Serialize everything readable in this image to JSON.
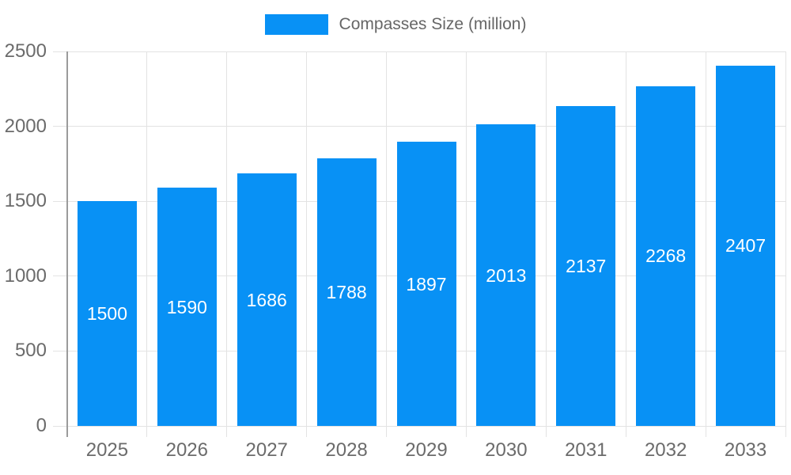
{
  "legend": {
    "label": "Compasses Size (million)"
  },
  "chart_data": {
    "type": "bar",
    "title": "",
    "series_name": "Compasses Size (million)",
    "categories": [
      "2025",
      "2026",
      "2027",
      "2028",
      "2029",
      "2030",
      "2031",
      "2032",
      "2033"
    ],
    "values": [
      1500,
      1590,
      1686,
      1788,
      1897,
      2013,
      2137,
      2268,
      2407
    ],
    "value_labels": [
      "1500",
      "1590",
      "1686",
      "1788",
      "1897",
      "2013",
      "2137",
      "2268",
      "2407"
    ],
    "xlabel": "",
    "ylabel": "",
    "ylim": [
      0,
      2500
    ],
    "yticks": [
      0,
      500,
      1000,
      1500,
      2000,
      2500
    ],
    "grid": true,
    "legend_position": "top",
    "colors": {
      "bar": "#0891f5",
      "bar_value_label": "#ffffff",
      "gridline": "#e3e3e3",
      "axis_line": "#9b9b9b",
      "tick_label": "#6b6b6b",
      "legend_text": "#666666",
      "background": "#ffffff"
    }
  }
}
